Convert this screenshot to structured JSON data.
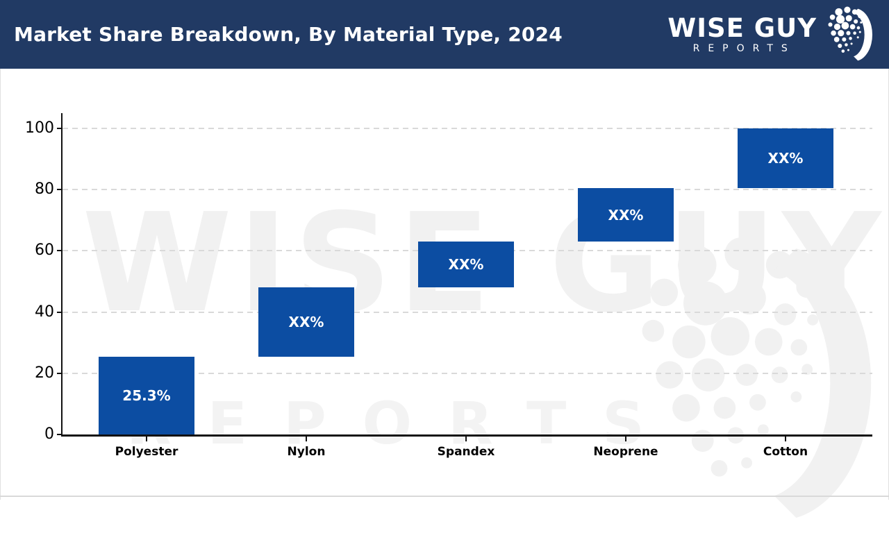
{
  "header": {
    "title": "Market Share Breakdown, By Material Type, 2024",
    "logo": {
      "line1": "WISE GUY",
      "line2": "REPORTS"
    }
  },
  "watermark": {
    "line1": "WISE GUY",
    "line2": "REPORTS"
  },
  "chart_data": {
    "type": "bar",
    "subtype": "floating-waterfall",
    "title": "Market Share Breakdown, By Material Type, 2024",
    "categories": [
      "Polyester",
      "Nylon",
      "Spandex",
      "Neoprene",
      "Cotton"
    ],
    "series": [
      {
        "name": "Market share cumulative range (%)",
        "ranges": [
          [
            0,
            25.3
          ],
          [
            25.3,
            48
          ],
          [
            48,
            63
          ],
          [
            63,
            80.5
          ],
          [
            80.5,
            100
          ]
        ]
      }
    ],
    "bar_labels": [
      "25.3%",
      "XX%",
      "XX%",
      "XX%",
      "XX%"
    ],
    "yticks": [
      0,
      20,
      40,
      60,
      80,
      100
    ],
    "ylim": [
      0,
      105
    ],
    "xlabel": "",
    "ylabel": "",
    "grid": "horizontal-dashed",
    "legend": "none"
  },
  "colors": {
    "header_bg": "#213a64",
    "bar": "#0c4da2",
    "bar_label": "#ffffff",
    "grid": "#d9d9d9",
    "axis": "#111111",
    "watermark": "#f1f1f1"
  }
}
